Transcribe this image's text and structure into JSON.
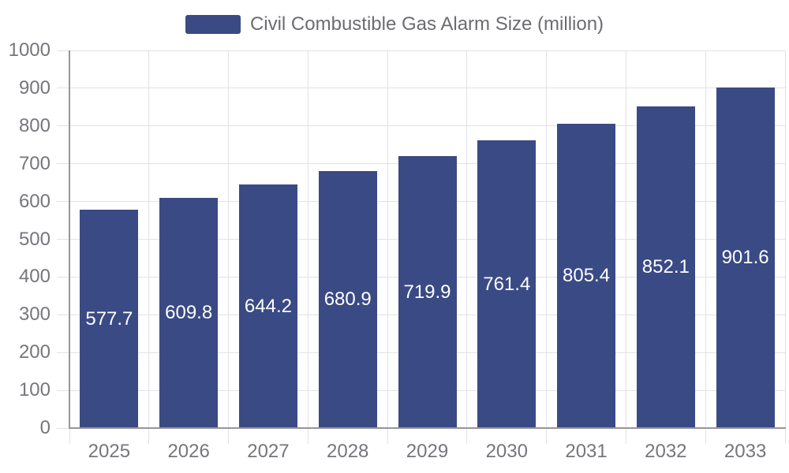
{
  "chart_data": {
    "type": "bar",
    "title": "",
    "categories": [
      "2025",
      "2026",
      "2027",
      "2028",
      "2029",
      "2030",
      "2031",
      "2032",
      "2033"
    ],
    "series": [
      {
        "name": "Civil Combustible Gas Alarm Size (million)",
        "values": [
          577.7,
          609.8,
          644.2,
          680.9,
          719.9,
          761.4,
          805.4,
          852.1,
          901.6
        ]
      }
    ],
    "xlabel": "",
    "ylabel": "",
    "ylim": [
      0,
      1000
    ],
    "ytick_step": 100,
    "grid": true,
    "legend_position": "top",
    "value_label_position": "inside-center"
  },
  "colors": {
    "bar": "#3A4A84",
    "grid_line": "#E1E2E7",
    "axis_line": "#96969B",
    "axis_text": "#75767C",
    "legend_text": "#6B6C70",
    "value_text": "#FFFFFF",
    "background": "#FFFFFF"
  }
}
